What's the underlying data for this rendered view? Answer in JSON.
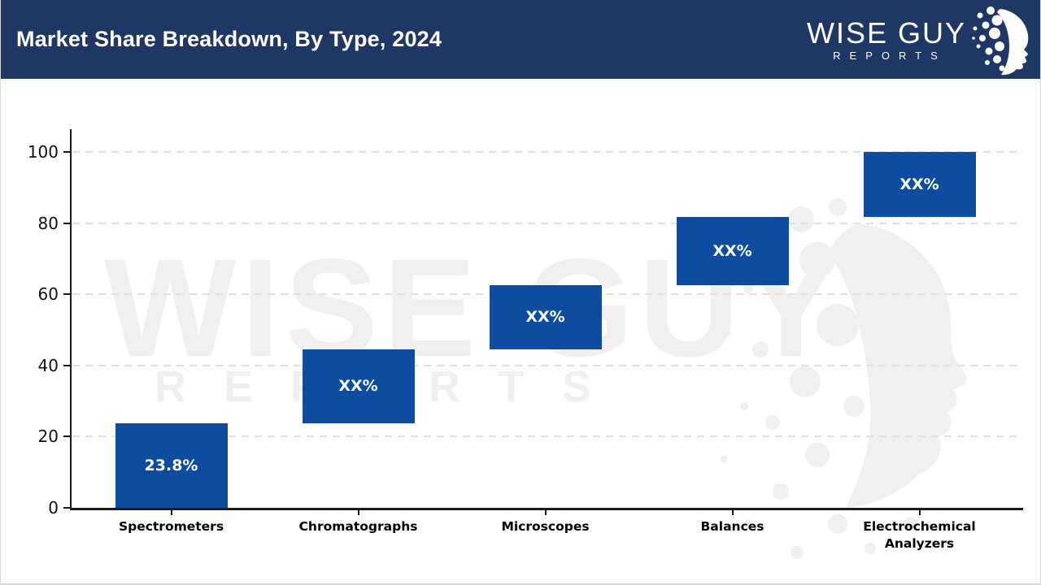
{
  "header": {
    "title": "Market Share Breakdown, By Type, 2024",
    "brand_line1": "WISE GUY",
    "brand_line2": "REPORTS",
    "bg_color": "#1f3764"
  },
  "watermark": {
    "line1": "WISE GUY",
    "line2": "REPORTS"
  },
  "chart_data": {
    "type": "bar",
    "subtype": "waterfall",
    "title": "Market Share Breakdown, By Type, 2024",
    "categories": [
      "Spectrometers",
      "Chromatographs",
      "Microscopes",
      "Balances",
      "Electrochemical Analyzers"
    ],
    "segments": [
      {
        "category": "Spectrometers",
        "start": 0,
        "end": 23.8,
        "label": "23.8%"
      },
      {
        "category": "Chromatographs",
        "start": 23.8,
        "end": 44.6,
        "label": "XX%"
      },
      {
        "category": "Microscopes",
        "start": 44.6,
        "end": 62.5,
        "label": "XX%"
      },
      {
        "category": "Balances",
        "start": 62.5,
        "end": 81.8,
        "label": "XX%"
      },
      {
        "category": "Electrochemical Analyzers",
        "start": 81.8,
        "end": 100,
        "label": "XX%"
      }
    ],
    "ylim": [
      0,
      100
    ],
    "yticks": [
      0,
      20,
      40,
      60,
      80,
      100
    ],
    "grid": "horizontal-dashed",
    "legend": "none",
    "bar_color": "#0d4c9f",
    "bar_label_color": "#ffffff",
    "grid_color": "#e0e0e0",
    "axis_color": "#1a1a1a",
    "watermark_color": "#f0f0f0"
  }
}
